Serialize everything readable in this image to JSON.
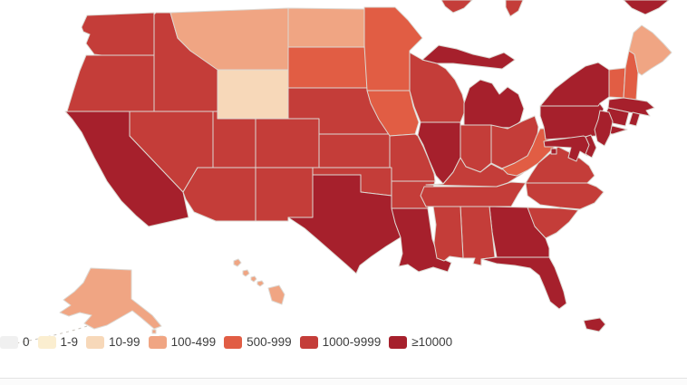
{
  "chart_data": {
    "type": "choropleth",
    "region": "United States",
    "title": "",
    "legend_position": "bottom-left",
    "categories": [
      {
        "label": "0",
        "color": "#f0f0f0"
      },
      {
        "label": "1-9",
        "color": "#fbeed0"
      },
      {
        "label": "10-99",
        "color": "#f7d8b9"
      },
      {
        "label": "100-499",
        "color": "#f0a583"
      },
      {
        "label": "500-999",
        "color": "#e15d44"
      },
      {
        "label": "1000-9999",
        "color": "#c43d39"
      },
      {
        "label": "≥10000",
        "color": "#a6202c"
      }
    ],
    "states": [
      {
        "abbr": "WA",
        "name": "Washington",
        "category": "1000-9999"
      },
      {
        "abbr": "OR",
        "name": "Oregon",
        "category": "1000-9999"
      },
      {
        "abbr": "CA",
        "name": "California",
        "category": "≥10000"
      },
      {
        "abbr": "ID",
        "name": "Idaho",
        "category": "1000-9999"
      },
      {
        "abbr": "NV",
        "name": "Nevada",
        "category": "1000-9999"
      },
      {
        "abbr": "MT",
        "name": "Montana",
        "category": "100-499"
      },
      {
        "abbr": "WY",
        "name": "Wyoming",
        "category": "10-99"
      },
      {
        "abbr": "UT",
        "name": "Utah",
        "category": "1000-9999"
      },
      {
        "abbr": "AZ",
        "name": "Arizona",
        "category": "1000-9999"
      },
      {
        "abbr": "CO",
        "name": "Colorado",
        "category": "1000-9999"
      },
      {
        "abbr": "NM",
        "name": "New Mexico",
        "category": "1000-9999"
      },
      {
        "abbr": "ND",
        "name": "North Dakota",
        "category": "100-499"
      },
      {
        "abbr": "SD",
        "name": "South Dakota",
        "category": "500-999"
      },
      {
        "abbr": "NE",
        "name": "Nebraska",
        "category": "1000-9999"
      },
      {
        "abbr": "KS",
        "name": "Kansas",
        "category": "1000-9999"
      },
      {
        "abbr": "OK",
        "name": "Oklahoma",
        "category": "1000-9999"
      },
      {
        "abbr": "TX",
        "name": "Texas",
        "category": "≥10000"
      },
      {
        "abbr": "MN",
        "name": "Minnesota",
        "category": "500-999"
      },
      {
        "abbr": "IA",
        "name": "Iowa",
        "category": "500-999"
      },
      {
        "abbr": "MO",
        "name": "Missouri",
        "category": "1000-9999"
      },
      {
        "abbr": "AR",
        "name": "Arkansas",
        "category": "1000-9999"
      },
      {
        "abbr": "LA",
        "name": "Louisiana",
        "category": "≥10000"
      },
      {
        "abbr": "WI",
        "name": "Wisconsin",
        "category": "1000-9999"
      },
      {
        "abbr": "IL",
        "name": "Illinois",
        "category": "≥10000"
      },
      {
        "abbr": "MI",
        "name": "Michigan",
        "category": "≥10000"
      },
      {
        "abbr": "IN",
        "name": "Indiana",
        "category": "1000-9999"
      },
      {
        "abbr": "OH",
        "name": "Ohio",
        "category": "1000-9999"
      },
      {
        "abbr": "KY",
        "name": "Kentucky",
        "category": "1000-9999"
      },
      {
        "abbr": "TN",
        "name": "Tennessee",
        "category": "1000-9999"
      },
      {
        "abbr": "WV",
        "name": "West Virginia",
        "category": "500-999"
      },
      {
        "abbr": "VA",
        "name": "Virginia",
        "category": "1000-9999"
      },
      {
        "abbr": "NC",
        "name": "North Carolina",
        "category": "1000-9999"
      },
      {
        "abbr": "SC",
        "name": "South Carolina",
        "category": "1000-9999"
      },
      {
        "abbr": "GA",
        "name": "Georgia",
        "category": "≥10000"
      },
      {
        "abbr": "AL",
        "name": "Alabama",
        "category": "1000-9999"
      },
      {
        "abbr": "MS",
        "name": "Mississippi",
        "category": "1000-9999"
      },
      {
        "abbr": "FL",
        "name": "Florida",
        "category": "≥10000"
      },
      {
        "abbr": "PA",
        "name": "Pennsylvania",
        "category": "≥10000"
      },
      {
        "abbr": "NY",
        "name": "New York",
        "category": "≥10000"
      },
      {
        "abbr": "VT",
        "name": "Vermont",
        "category": "500-999"
      },
      {
        "abbr": "NH",
        "name": "New Hampshire",
        "category": "500-999"
      },
      {
        "abbr": "ME",
        "name": "Maine",
        "category": "100-499"
      },
      {
        "abbr": "MA",
        "name": "Massachusetts",
        "category": "≥10000"
      },
      {
        "abbr": "CT",
        "name": "Connecticut",
        "category": "≥10000"
      },
      {
        "abbr": "RI",
        "name": "Rhode Island",
        "category": "≥10000"
      },
      {
        "abbr": "NJ",
        "name": "New Jersey",
        "category": "≥10000"
      },
      {
        "abbr": "MD",
        "name": "Maryland",
        "category": "≥10000"
      },
      {
        "abbr": "DE",
        "name": "Delaware",
        "category": "≥10000"
      },
      {
        "abbr": "DC",
        "name": "District of Columbia",
        "category": "≥10000"
      },
      {
        "abbr": "AK",
        "name": "Alaska",
        "category": "100-499"
      },
      {
        "abbr": "HI",
        "name": "Hawaii",
        "category": "100-499"
      },
      {
        "abbr": "PR",
        "name": "Puerto Rico",
        "category": "≥10000"
      }
    ]
  }
}
